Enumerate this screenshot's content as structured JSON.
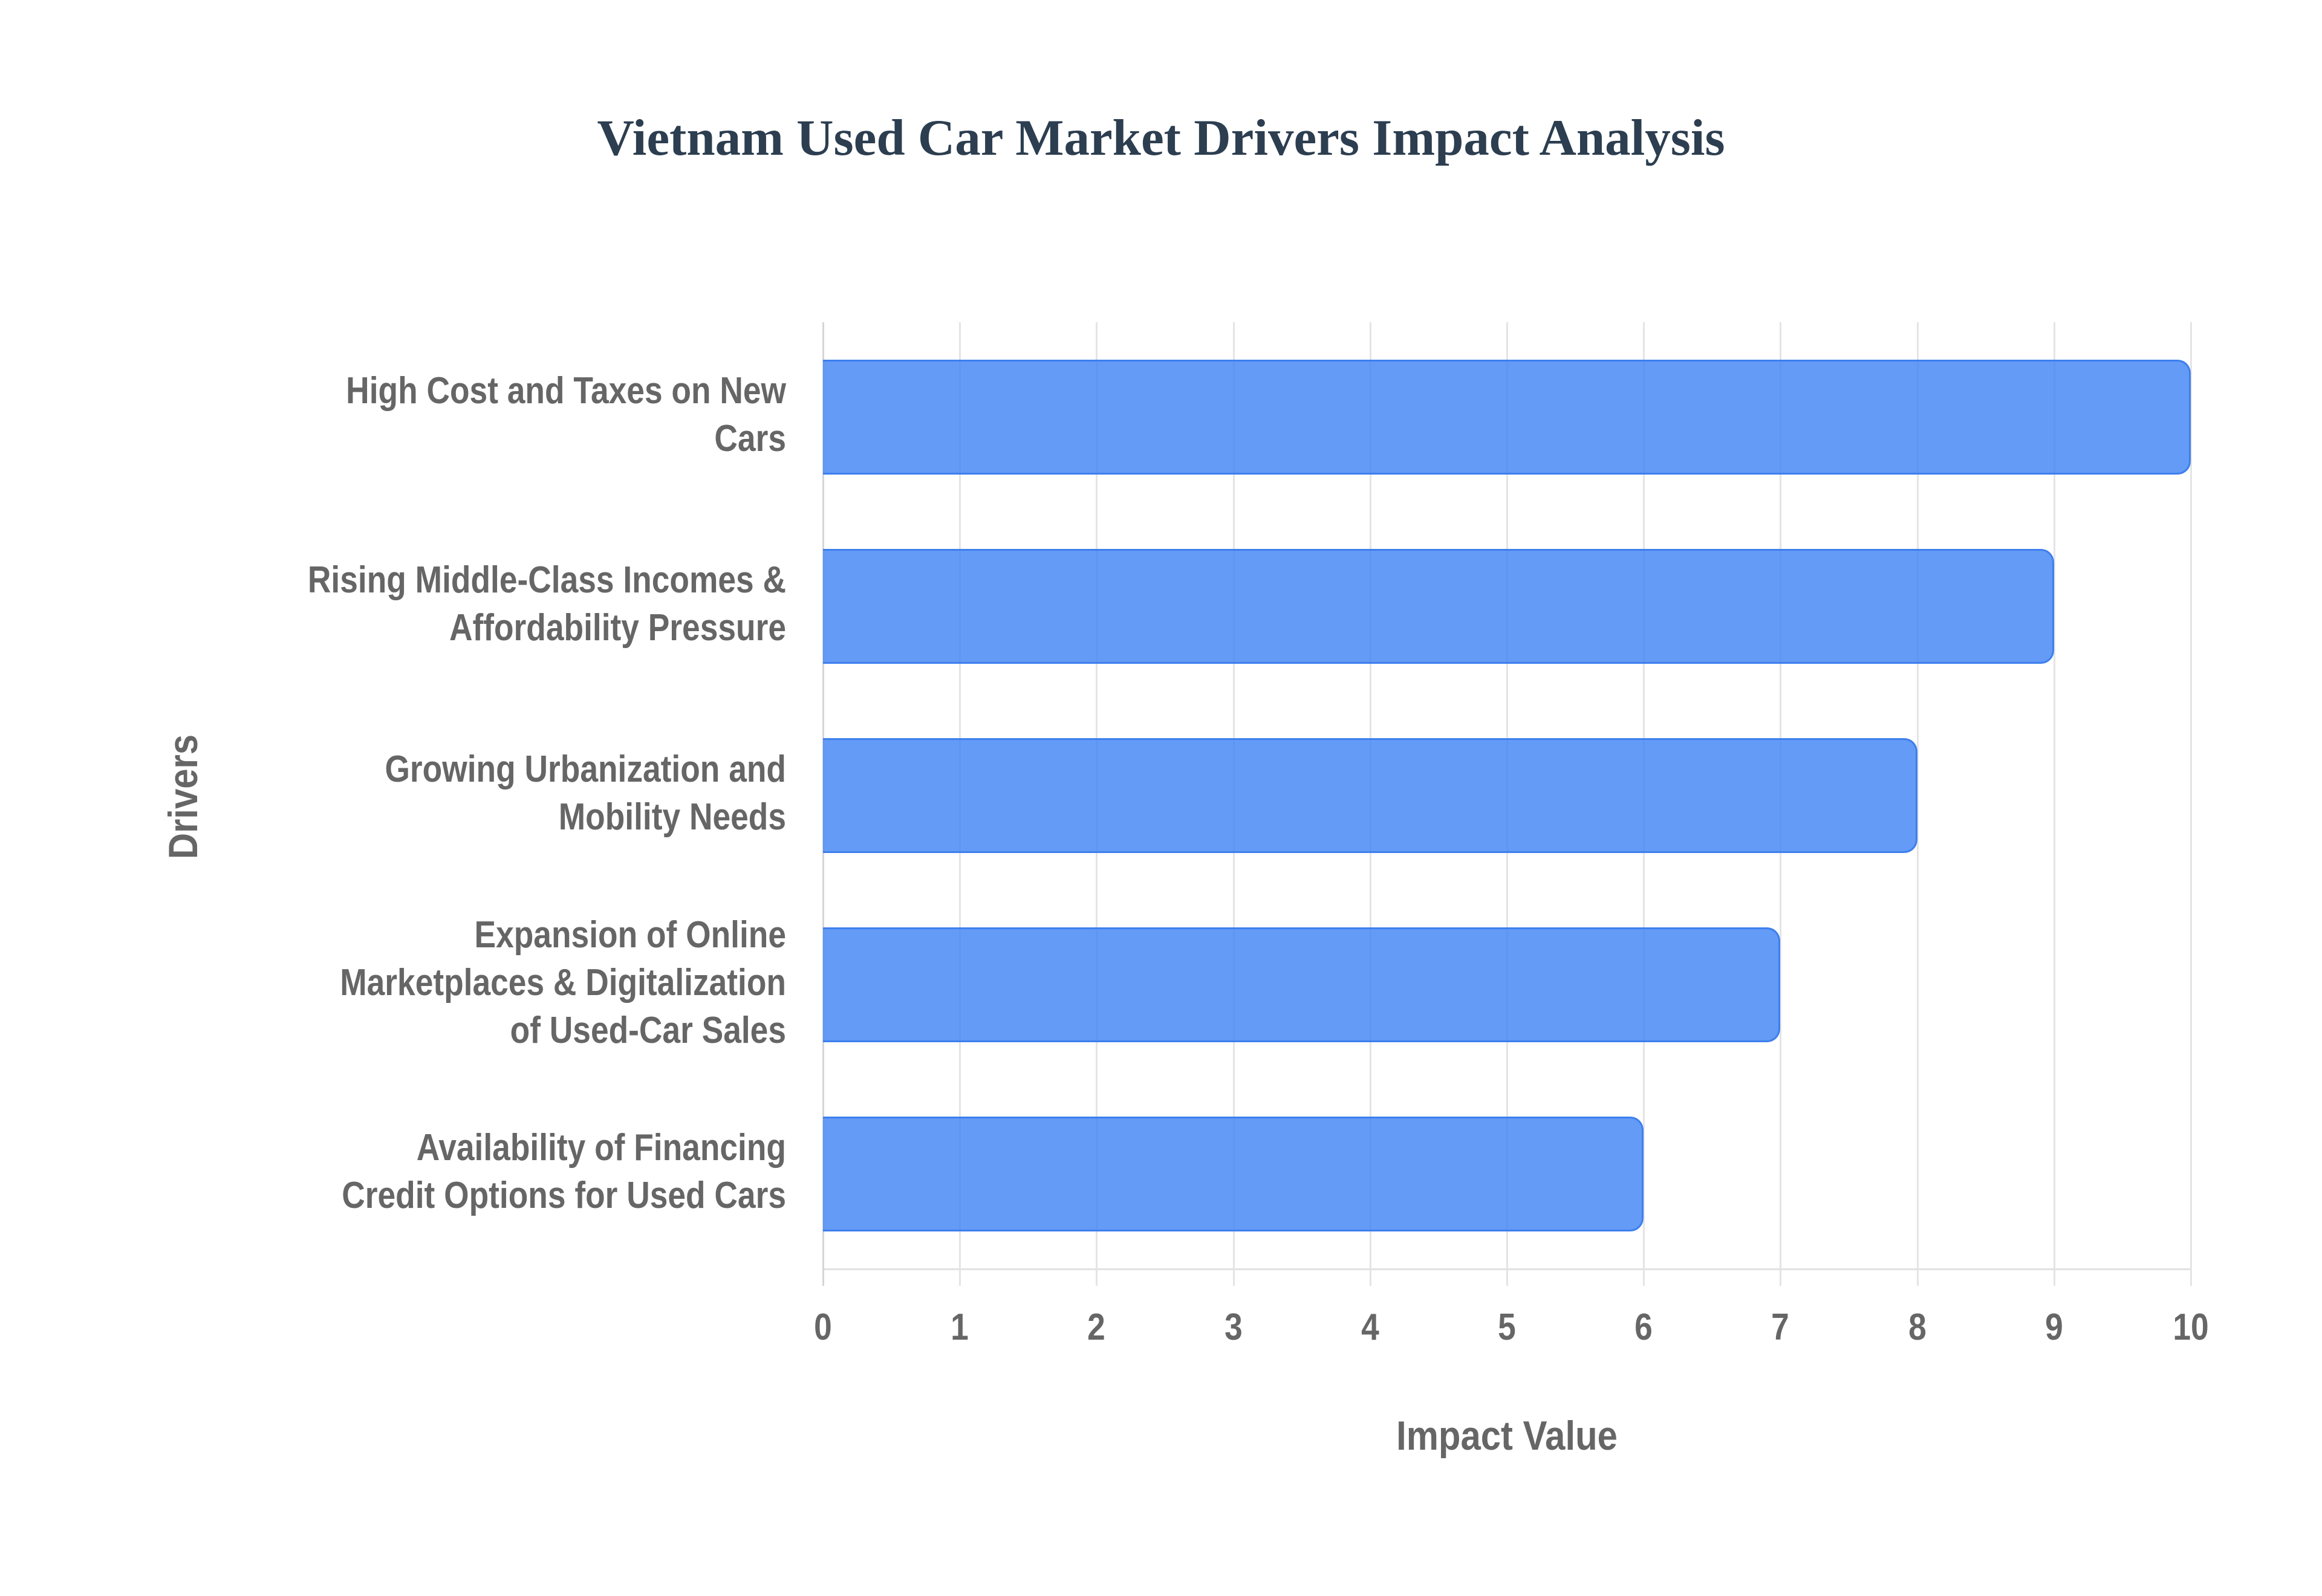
{
  "chart_data": {
    "type": "bar",
    "orientation": "horizontal",
    "title": "Vietnam Used Car Market Drivers Impact Analysis",
    "xlabel": "Impact Value",
    "ylabel": "Drivers",
    "categories": [
      "High Cost and Taxes on New Cars",
      "Rising Middle-Class Incomes & Affordability Pressure",
      "Growing Urbanization and Mobility Needs",
      "Expansion of Online Marketplaces & Digitalization of Used-Car Sales",
      "Availability of Financing Credit Options for Used Cars"
    ],
    "category_lines": [
      [
        "High Cost and Taxes on New",
        "Cars"
      ],
      [
        "Rising Middle-Class Incomes &",
        "Affordability Pressure"
      ],
      [
        "Growing Urbanization and",
        "Mobility Needs"
      ],
      [
        "Expansion of Online",
        "Marketplaces & Digitalization",
        "of Used-Car Sales"
      ],
      [
        "Availability of Financing",
        "Credit Options for Used Cars"
      ]
    ],
    "values": [
      10,
      9,
      8,
      7,
      6
    ],
    "xlim": [
      0,
      10
    ],
    "xticks": [
      "0",
      "1",
      "2",
      "3",
      "4",
      "5",
      "6",
      "7",
      "8",
      "9",
      "10"
    ],
    "grid": true,
    "legend": null,
    "bar_color": "#4285f4",
    "bar_border_color": "#3d7fee"
  }
}
